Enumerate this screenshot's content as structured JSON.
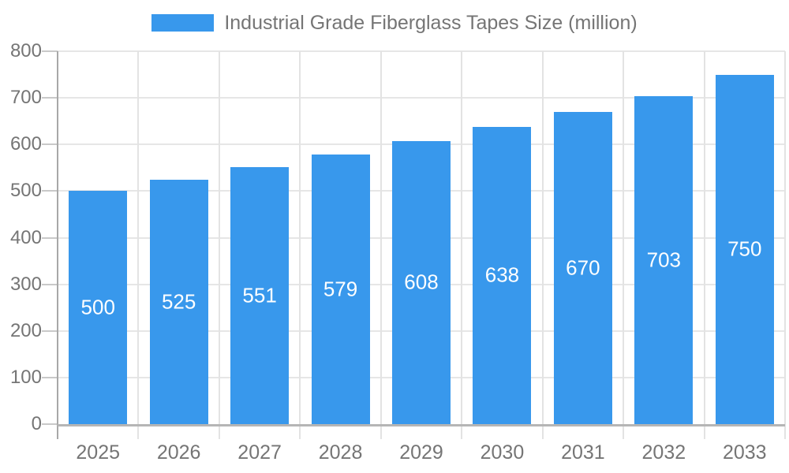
{
  "legend": {
    "label": "Industrial Grade Fiberglass Tapes Size (million)",
    "swatch_color": "#3898EC"
  },
  "chart_data": {
    "type": "bar",
    "title": "Industrial Grade Fiberglass Tapes Size (million)",
    "series_name": "Industrial Grade Fiberglass Tapes Size (million)",
    "categories": [
      "2025",
      "2026",
      "2027",
      "2028",
      "2029",
      "2030",
      "2031",
      "2032",
      "2033"
    ],
    "values": [
      500,
      525,
      551,
      579,
      608,
      638,
      670,
      703,
      750
    ],
    "xlabel": "",
    "ylabel": "",
    "ylim": [
      0,
      800
    ],
    "ytick_step": 100,
    "yticks": [
      0,
      100,
      200,
      300,
      400,
      500,
      600,
      700,
      800
    ],
    "grid": true,
    "legend_position": "top",
    "value_labels": "inside-center",
    "colors": {
      "bar": "#3898EC",
      "value_label": "#ffffff",
      "grid_line": "#e6e6e6",
      "x_grid_line": "#e3e3e3",
      "y_axis_line": "#a8a8a8",
      "x_axis_line": "#b5b5b5",
      "tick": "#c9c9c9",
      "text": "#757575",
      "background": "#ffffff"
    }
  }
}
